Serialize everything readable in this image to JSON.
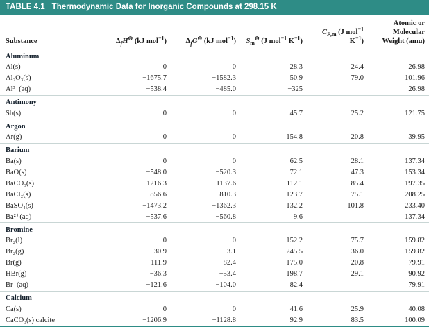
{
  "colors": {
    "header_bar": "#2e8c86",
    "rule_line": "#c9d6d5",
    "bottom_rule": "#2e8c86"
  },
  "header": {
    "tag": "TABLE 4.1",
    "title": "Thermodynamic Data for Inorganic Compounds at 298.15 K"
  },
  "columns": {
    "substance": "Substance",
    "dfH": "Δ<sub><i>f</i></sub><i>H</i><sup>⊖</sup> (kJ mol<sup>−1</sup>)",
    "dfG": "Δ<sub><i>f</i></sub><i>G</i><sup>⊖</sup> (kJ mol<sup>−1</sup>)",
    "S": "<i>S</i><sub>m</sub><sup>⊖</sup> (J mol<sup>−1</sup> K<sup>−1</sup>)",
    "Cp": "<i>C</i><sub><i>P</i>,m</sub> (J mol<sup>−1</sup> K<sup>−1</sup>)",
    "mw": "Atomic or Molecular Weight (amu)"
  },
  "groups": [
    {
      "name": "Aluminum",
      "rows": [
        {
          "substance": "Al(s)",
          "dfH": "0",
          "dfG": "0",
          "S": "28.3",
          "Cp": "24.4",
          "mw": "26.98"
        },
        {
          "substance": "Al₂O₃(s)",
          "dfH": "−1675.7",
          "dfG": "−1582.3",
          "S": "50.9",
          "Cp": "79.0",
          "mw": "101.96"
        },
        {
          "substance": "Al³⁺(aq)",
          "dfH": "−538.4",
          "dfG": "−485.0",
          "S": "−325",
          "Cp": "",
          "mw": "26.98"
        }
      ]
    },
    {
      "name": "Antimony",
      "rows": [
        {
          "substance": "Sb(s)",
          "dfH": "0",
          "dfG": "0",
          "S": "45.7",
          "Cp": "25.2",
          "mw": "121.75"
        }
      ]
    },
    {
      "name": "Argon",
      "rows": [
        {
          "substance": "Ar(g)",
          "dfH": "0",
          "dfG": "0",
          "S": "154.8",
          "Cp": "20.8",
          "mw": "39.95"
        }
      ]
    },
    {
      "name": "Barium",
      "rows": [
        {
          "substance": "Ba(s)",
          "dfH": "0",
          "dfG": "0",
          "S": "62.5",
          "Cp": "28.1",
          "mw": "137.34"
        },
        {
          "substance": "BaO(s)",
          "dfH": "−548.0",
          "dfG": "−520.3",
          "S": "72.1",
          "Cp": "47.3",
          "mw": "153.34"
        },
        {
          "substance": "BaCO₃(s)",
          "dfH": "−1216.3",
          "dfG": "−1137.6",
          "S": "112.1",
          "Cp": "85.4",
          "mw": "197.35"
        },
        {
          "substance": "BaCl₂(s)",
          "dfH": "−856.6",
          "dfG": "−810.3",
          "S": "123.7",
          "Cp": "75.1",
          "mw": "208.25"
        },
        {
          "substance": "BaSO₄(s)",
          "dfH": "−1473.2",
          "dfG": "−1362.3",
          "S": "132.2",
          "Cp": "101.8",
          "mw": "233.40"
        },
        {
          "substance": "Ba²⁺(aq)",
          "dfH": "−537.6",
          "dfG": "−560.8",
          "S": "9.6",
          "Cp": "",
          "mw": "137.34"
        }
      ]
    },
    {
      "name": "Bromine",
      "rows": [
        {
          "substance": "Br₂(l)",
          "dfH": "0",
          "dfG": "0",
          "S": "152.2",
          "Cp": "75.7",
          "mw": "159.82"
        },
        {
          "substance": "Br₂(g)",
          "dfH": "30.9",
          "dfG": "3.1",
          "S": "245.5",
          "Cp": "36.0",
          "mw": "159.82"
        },
        {
          "substance": "Br(g)",
          "dfH": "111.9",
          "dfG": "82.4",
          "S": "175.0",
          "Cp": "20.8",
          "mw": "79.91"
        },
        {
          "substance": "HBr(g)",
          "dfH": "−36.3",
          "dfG": "−53.4",
          "S": "198.7",
          "Cp": "29.1",
          "mw": "90.92"
        },
        {
          "substance": "Br⁻(aq)",
          "dfH": "−121.6",
          "dfG": "−104.0",
          "S": "82.4",
          "Cp": "",
          "mw": "79.91"
        }
      ]
    },
    {
      "name": "Calcium",
      "rows": [
        {
          "substance": "Ca(s)",
          "dfH": "0",
          "dfG": "0",
          "S": "41.6",
          "Cp": "25.9",
          "mw": "40.08"
        },
        {
          "substance": "CaCO₃(s) calcite",
          "dfH": "−1206.9",
          "dfG": "−1128.8",
          "S": "92.9",
          "Cp": "83.5",
          "mw": "100.09"
        }
      ]
    }
  ]
}
